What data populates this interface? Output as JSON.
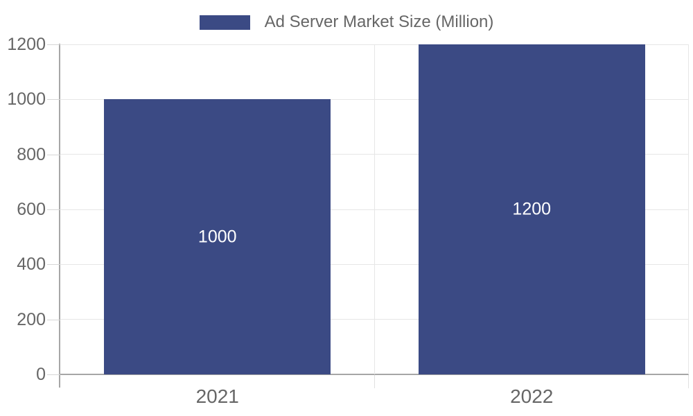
{
  "chart_data": {
    "type": "bar",
    "title": "Ad Server Market Size (Million)",
    "categories": [
      "2021",
      "2022"
    ],
    "values": [
      1000,
      1200
    ],
    "bar_labels": [
      "1000",
      "1200"
    ],
    "xlabel": "",
    "ylabel": "",
    "ylim": [
      0,
      1200
    ],
    "yticks": [
      0,
      200,
      400,
      600,
      800,
      1000,
      1200
    ],
    "grid": true,
    "legend_position": "top-center",
    "colors": {
      "bar": "#3B4A84",
      "bar_label": "#FFFFFF",
      "axis_line": "#A6A6A6",
      "gridline": "#E6E6E6",
      "tick": "#D6D6D6",
      "axis_text": "#666666",
      "legend_text": "#666666",
      "background": "#FFFFFF"
    }
  }
}
